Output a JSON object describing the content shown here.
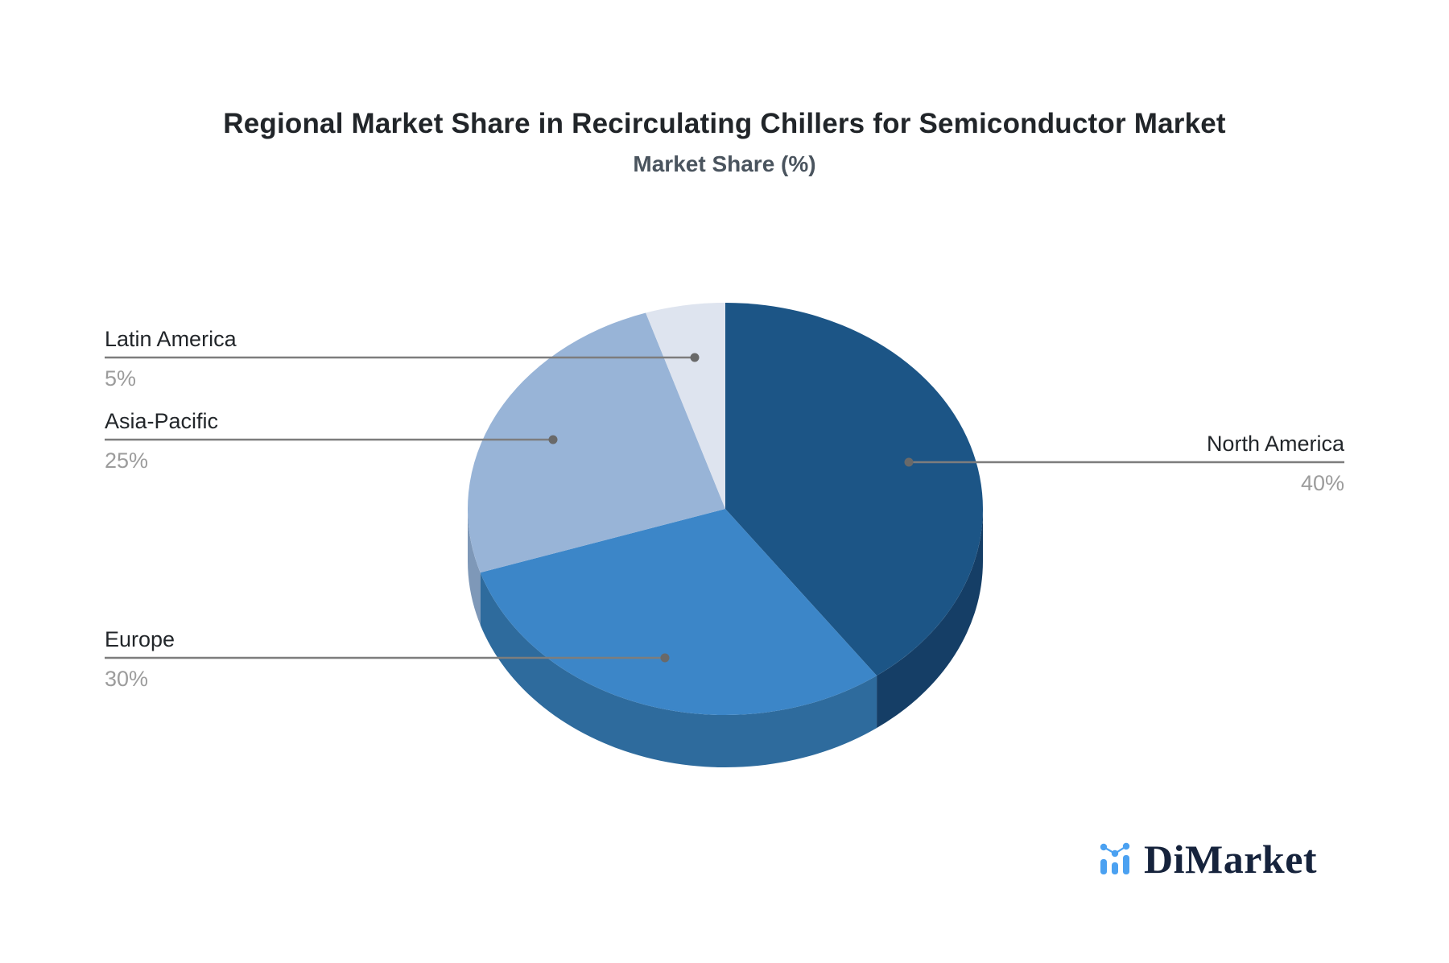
{
  "title": "Regional Market Share in Recirculating Chillers for Semiconductor Market",
  "subtitle": "Market Share (%)",
  "brand": {
    "name": "DiMarket",
    "icon": "bar-chart-logo-icon",
    "icon_color": "#4BA1F1",
    "text_color": "#16233C"
  },
  "chart_data": {
    "type": "pie",
    "style": "3d",
    "title": "Regional Market Share in Recirculating Chillers for Semiconductor Market",
    "subtitle": "Market Share (%)",
    "unit": "%",
    "start_angle": "12-oclock",
    "direction": "clockwise",
    "legend": "none",
    "label_color": "#22262A",
    "pct_color": "#9C9C9C",
    "leader_line_color": "#7D7D7D",
    "leader_dot_color": "#696969",
    "slices": [
      {
        "label": "North America",
        "value": 40,
        "pct": "40%",
        "color": "#1C5586",
        "side_color": "#153E66"
      },
      {
        "label": "Europe",
        "value": 30,
        "pct": "30%",
        "color": "#3C86C8",
        "side_color": "#2E6B9D"
      },
      {
        "label": "Asia-Pacific",
        "value": 25,
        "pct": "25%",
        "color": "#98B4D7",
        "side_color": "#7E98B8"
      },
      {
        "label": "Latin America",
        "value": 5,
        "pct": "5%",
        "color": "#DEE4EF",
        "side_color": "#C5CEDD"
      }
    ]
  }
}
